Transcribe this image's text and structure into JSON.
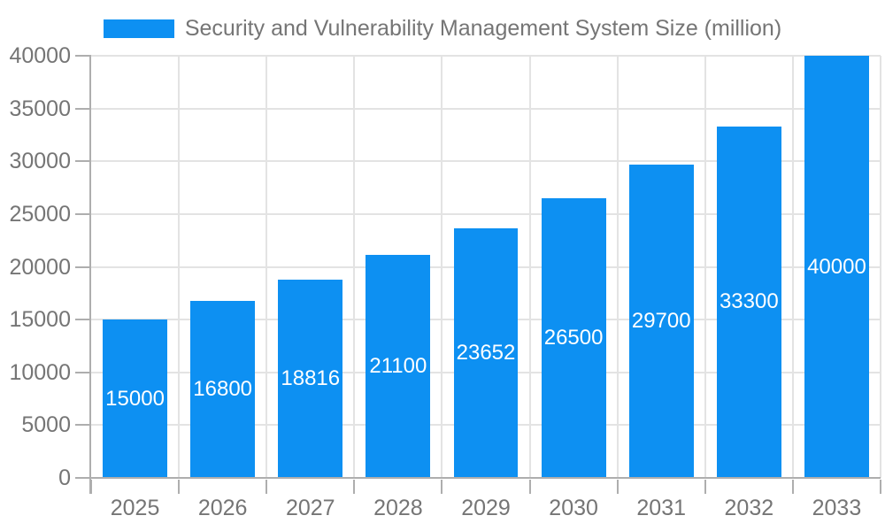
{
  "chart_data": {
    "type": "bar",
    "title": "Security and Vulnerability Management System Size (million)",
    "categories": [
      "2025",
      "2026",
      "2027",
      "2028",
      "2029",
      "2030",
      "2031",
      "2032",
      "2033"
    ],
    "values": [
      15000,
      16800,
      18816,
      21100,
      23652,
      26500,
      29700,
      33300,
      40000
    ],
    "bar_value_labels": [
      "15000",
      "16800",
      "18816",
      "21100",
      "23652",
      "26500",
      "29700",
      "33300",
      "40000"
    ],
    "xlabel": "",
    "ylabel": "",
    "ylim": [
      0,
      40000
    ],
    "ytick_step": 5000,
    "ytick_labels": [
      "0",
      "5000",
      "10000",
      "15000",
      "20000",
      "25000",
      "30000",
      "35000",
      "40000"
    ],
    "grid": true,
    "vertical_gridlines": true,
    "legend_position": "top",
    "value_label_position": "inside-center",
    "colors": {
      "bar": "#0d90f2",
      "bar_label_text": "#ffffff",
      "axis_text": "#757575",
      "gridline": "#e3e3e3",
      "axis_line": "#aeaeae",
      "background": "#ffffff"
    }
  }
}
